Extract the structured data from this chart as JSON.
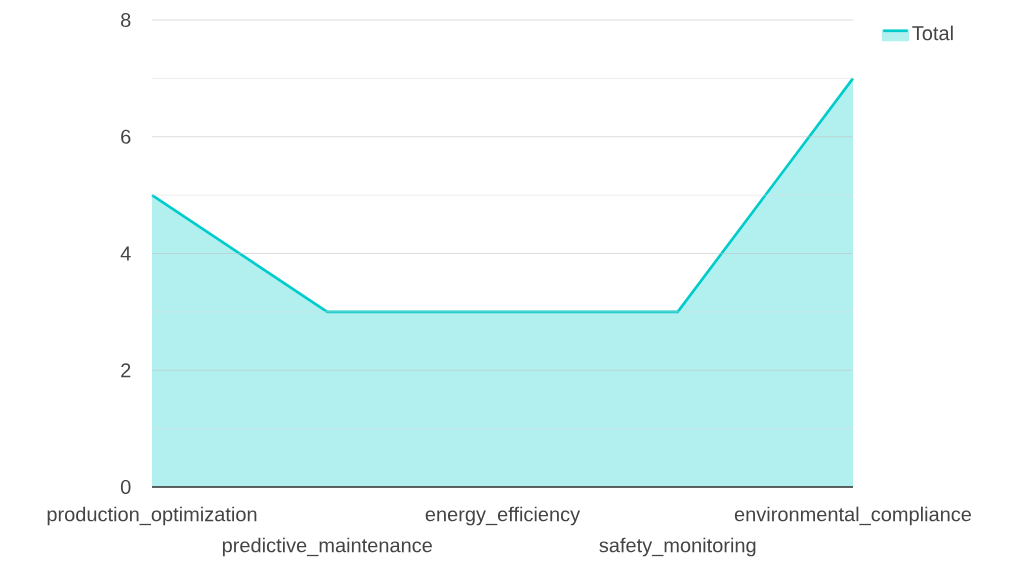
{
  "chart_data": {
    "type": "area",
    "categories": [
      "production_optimization",
      "predictive_maintenance",
      "energy_efficiency",
      "safety_monitoring",
      "environmental_compliance"
    ],
    "series": [
      {
        "name": "Total",
        "color": "#00cccc",
        "values": [
          5,
          3,
          3,
          3,
          7
        ]
      }
    ],
    "ylim": [
      0,
      8
    ],
    "yticks": [
      0,
      {
        "value": 1,
        "label": null
      },
      2,
      {
        "value": 3,
        "label": null
      },
      4,
      {
        "value": 5,
        "label": null
      },
      6,
      {
        "value": 7,
        "label": null
      },
      8
    ],
    "grid": "y",
    "legend": "top right"
  }
}
